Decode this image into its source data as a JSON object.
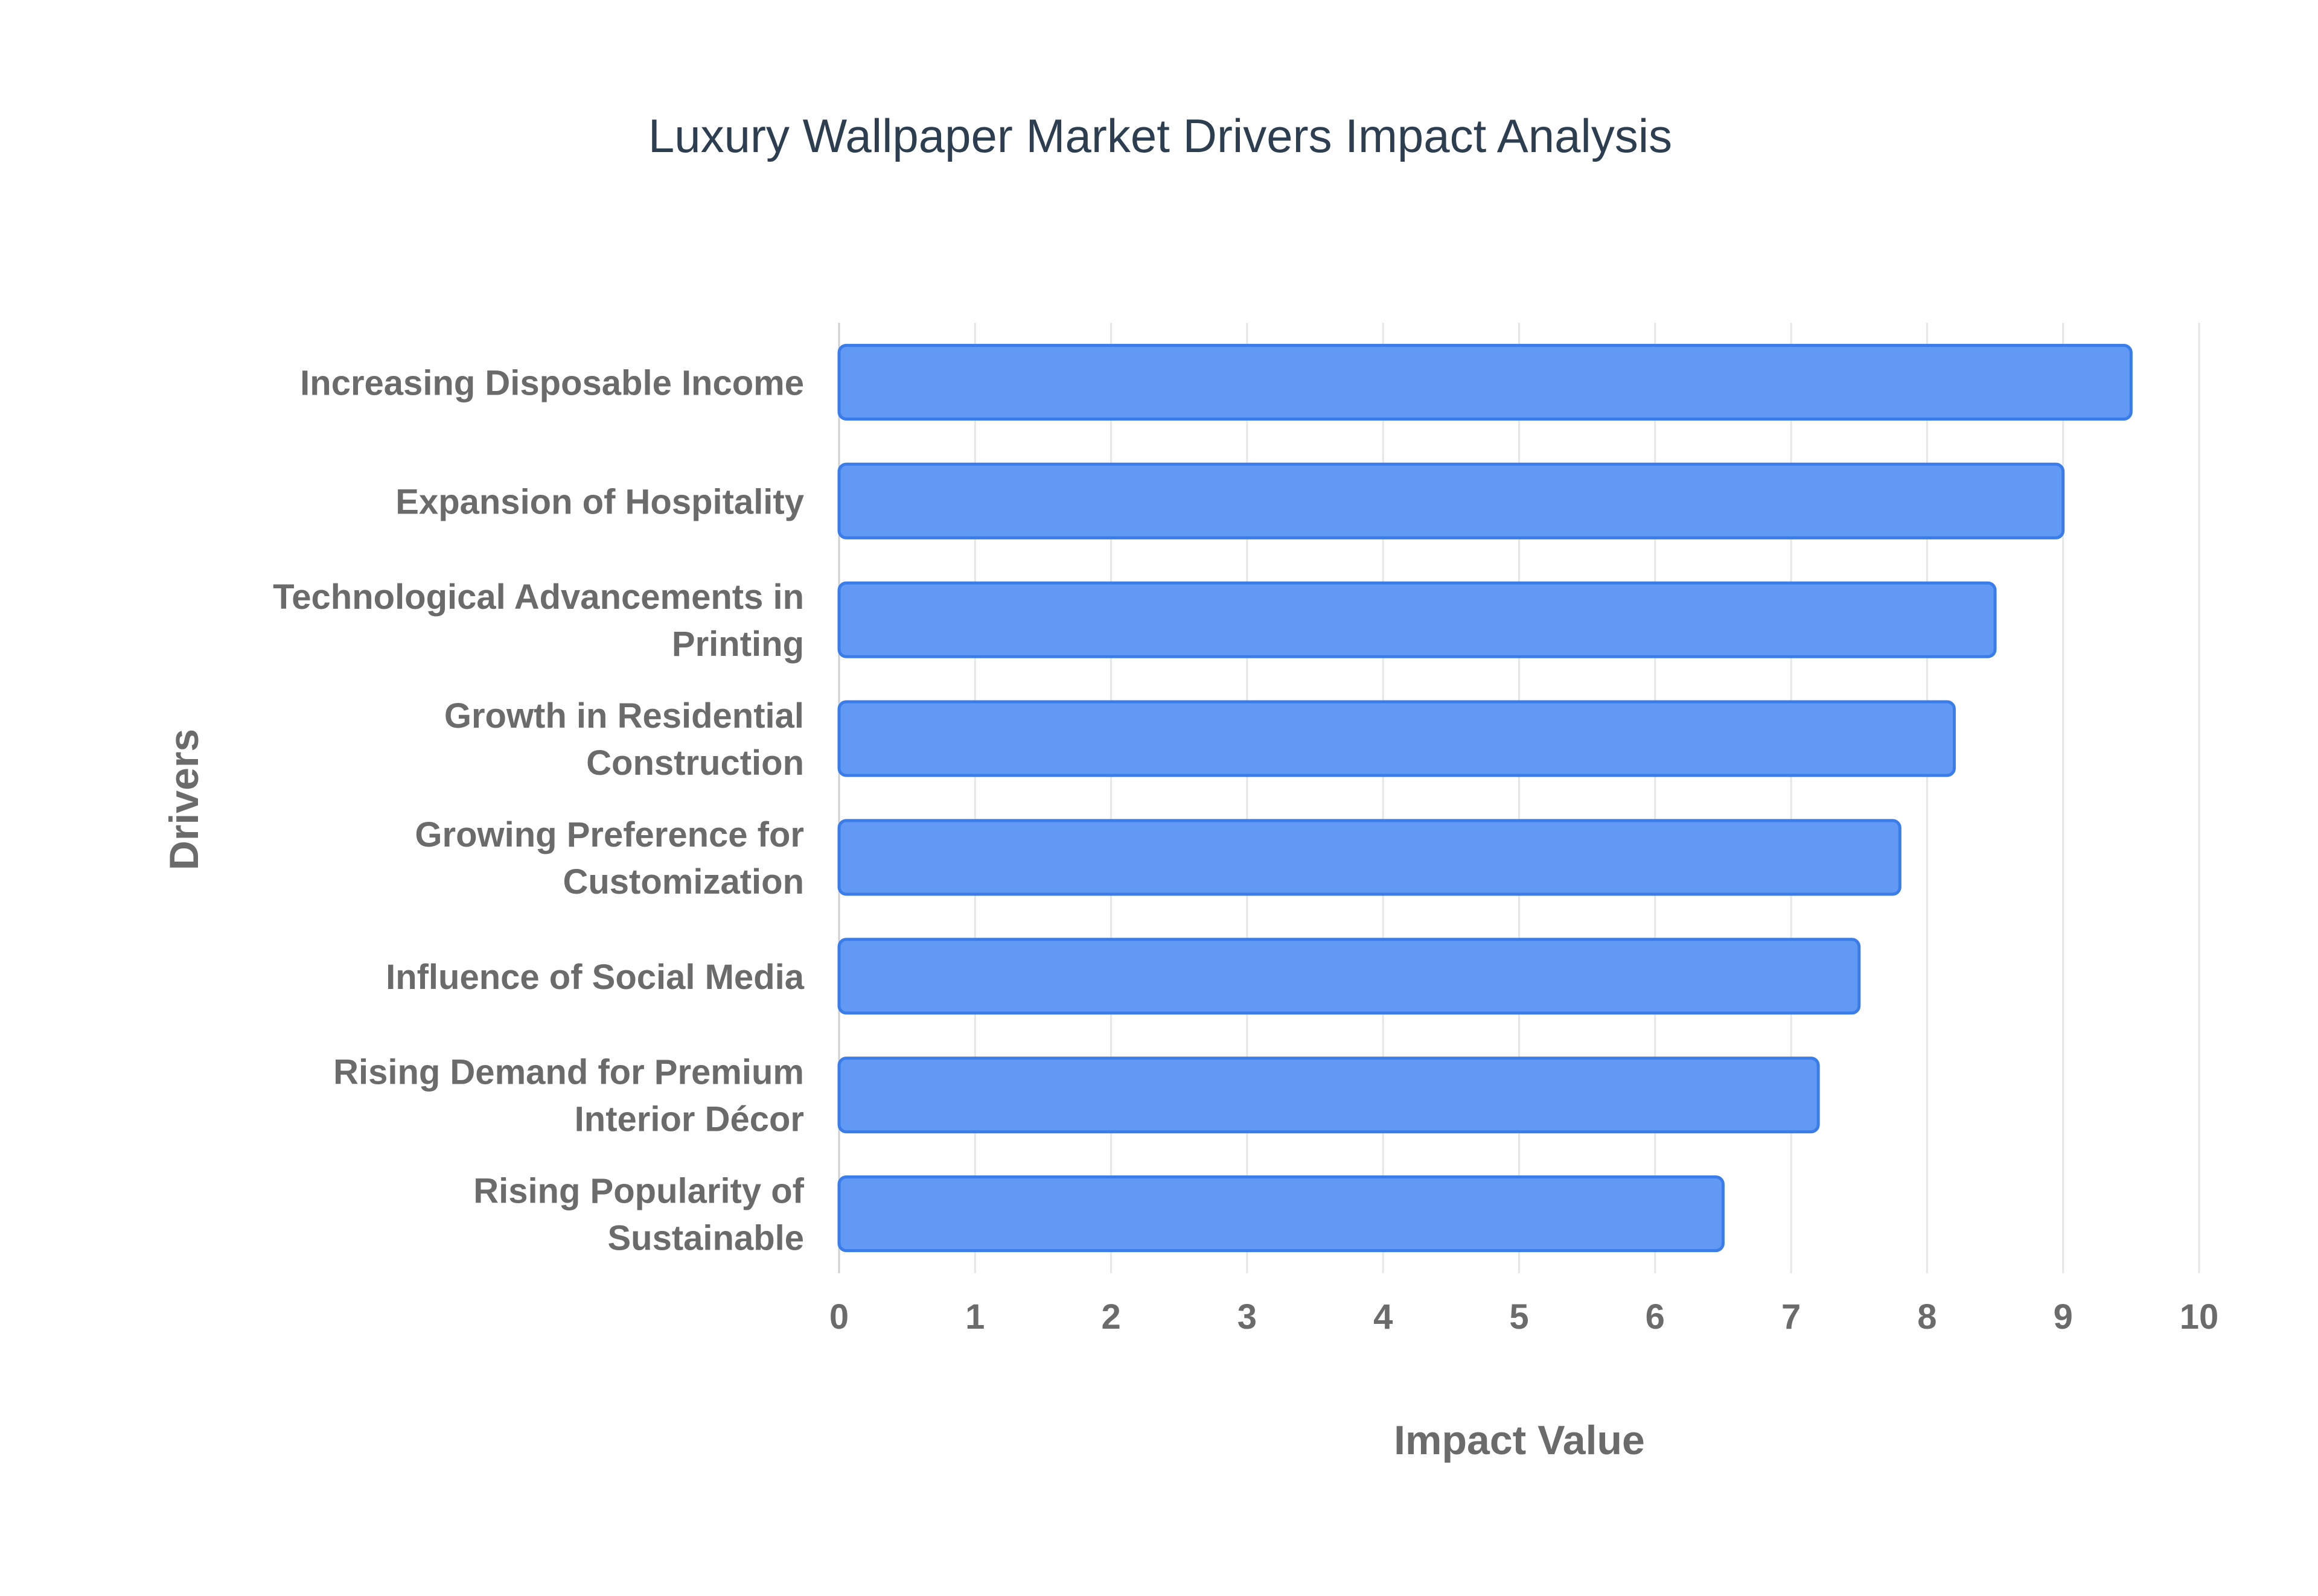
{
  "chart_data": {
    "type": "bar",
    "orientation": "horizontal",
    "title": "Luxury Wallpaper Market Drivers Impact Analysis",
    "xlabel": "Impact Value",
    "ylabel": "Drivers",
    "categories": [
      [
        "Increasing Disposable Income"
      ],
      [
        "Expansion of Hospitality"
      ],
      [
        "Technological Advancements in",
        "Printing"
      ],
      [
        "Growth in Residential",
        "Construction"
      ],
      [
        "Growing Preference for",
        "Customization"
      ],
      [
        "Influence of Social Media"
      ],
      [
        "Rising Demand for Premium",
        "Interior Décor"
      ],
      [
        "Rising Popularity of",
        "Sustainable"
      ]
    ],
    "values": [
      9.5,
      9.0,
      8.5,
      8.2,
      7.8,
      7.5,
      7.2,
      6.5
    ],
    "xlim": [
      0,
      10
    ],
    "xticks": [
      "0",
      "1",
      "2",
      "3",
      "4",
      "5",
      "6",
      "7",
      "8",
      "9",
      "10"
    ],
    "grid": true,
    "legend": "none",
    "colors": {
      "bar_fill": "#6199f5",
      "bar_stroke": "#3b7de8",
      "title": "#2c3e50",
      "labels": "#6b6b6b",
      "grid": "#e6e6e6",
      "axis": "#cfcfcf"
    }
  }
}
